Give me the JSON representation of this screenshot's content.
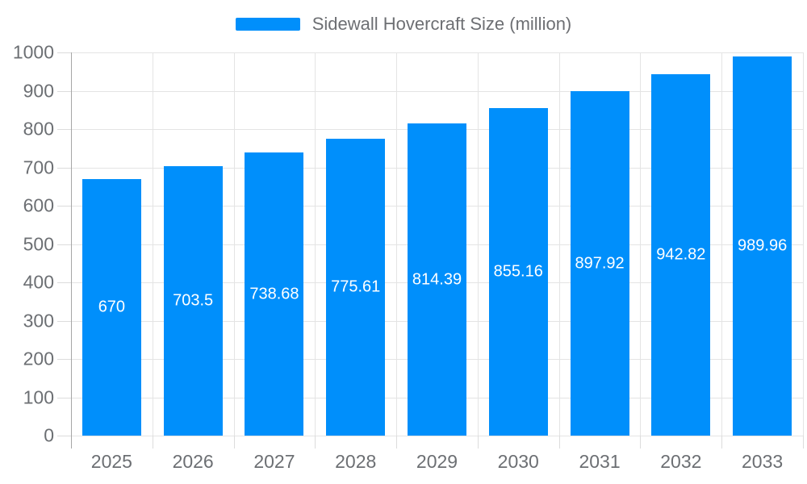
{
  "chart_data": {
    "type": "bar",
    "title": "Sidewall Hovercraft Size (million)",
    "categories": [
      "2025",
      "2026",
      "2027",
      "2028",
      "2029",
      "2030",
      "2031",
      "2032",
      "2033"
    ],
    "values": [
      670,
      703.5,
      738.68,
      775.61,
      814.39,
      855.16,
      897.92,
      942.82,
      989.96
    ],
    "value_labels": [
      "670",
      "703.5",
      "738.68",
      "775.61",
      "814.39",
      "855.16",
      "897.92",
      "942.82",
      "989.96"
    ],
    "xlabel": "",
    "ylabel": "",
    "ylim": [
      0,
      1000
    ],
    "yticks": [
      "0",
      "100",
      "200",
      "300",
      "400",
      "500",
      "600",
      "700",
      "800",
      "900",
      "1000"
    ],
    "grid": true,
    "legend_position": "top",
    "bar_color": "#008FFB",
    "value_label_color": "#ffffff",
    "axis_label_color": "#6c6f73",
    "gridline_color": "#e4e4e4"
  }
}
